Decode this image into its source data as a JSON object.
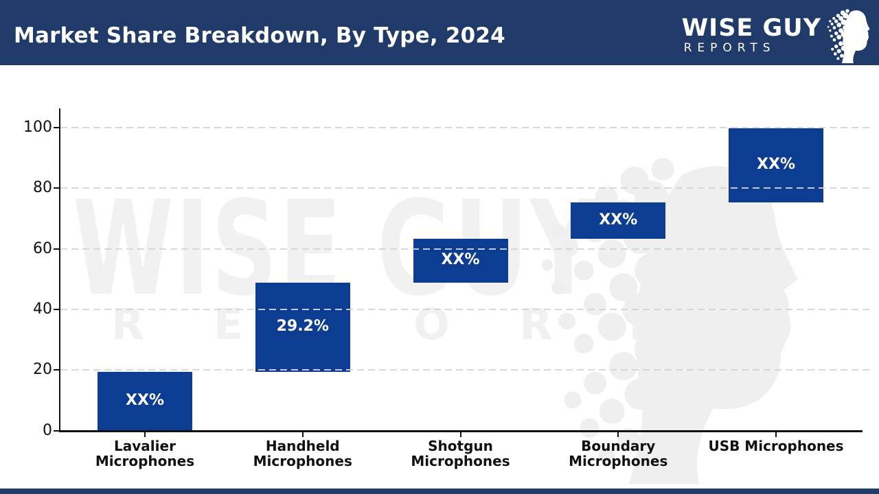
{
  "header": {
    "title": "Market Share Breakdown, By Type, 2024",
    "logo": {
      "name": "WISE GUY",
      "subtitle": "REPORTS"
    }
  },
  "watermark": {
    "line1": "WISE GUY",
    "line2": "R E P O R T S"
  },
  "chart_data": {
    "type": "bar",
    "variant": "waterfall",
    "title": "Market Share Breakdown, By Type, 2024",
    "categories": [
      "Lavalier\nMicrophones",
      "Handheld\nMicrophones",
      "Shotgun\nMicrophones",
      "Boundary\nMicrophones",
      "USB Microphones"
    ],
    "segments": [
      {
        "category": "Lavalier Microphones",
        "start": 0,
        "end": 19.5,
        "label": "XX%"
      },
      {
        "category": "Handheld Microphones",
        "start": 19.5,
        "end": 48.7,
        "label": "29.2%"
      },
      {
        "category": "Shotgun Microphones",
        "start": 48.7,
        "end": 63.2,
        "label": "XX%"
      },
      {
        "category": "Boundary Microphones",
        "start": 63.2,
        "end": 75.2,
        "label": "XX%"
      },
      {
        "category": "USB Microphones",
        "start": 75.2,
        "end": 99.8,
        "label": "XX%"
      }
    ],
    "ylim": [
      0,
      100
    ],
    "yticks": [
      0,
      20,
      40,
      60,
      80,
      100
    ],
    "xlabel": "",
    "ylabel": "",
    "grid": "horizontal-dashed",
    "legend": "none",
    "bar_color": "#0d3d92",
    "value_label_color": "#ffffff"
  },
  "colors": {
    "header_bg": "#203a6a",
    "bar": "#0d3d92",
    "grid": "#d7d7d7",
    "axis": "#111111",
    "watermark": "#f1f1f1",
    "footer_bg": "#203a6a"
  }
}
